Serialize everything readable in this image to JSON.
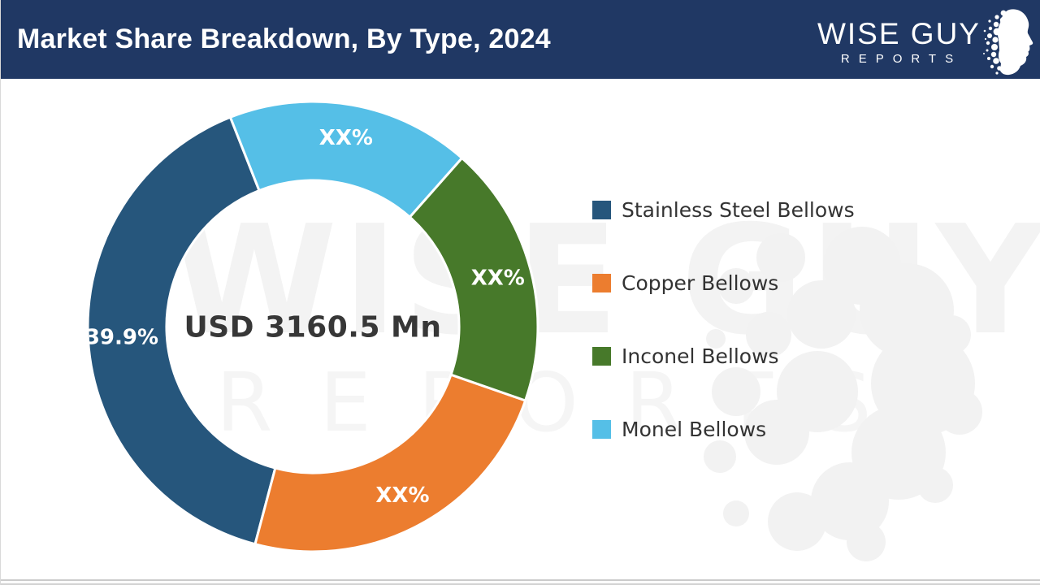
{
  "header": {
    "title": "Market Share Breakdown, By Type, 2024",
    "logo": {
      "brand_line1": "WISE GUY",
      "brand_line2": "REPORTS"
    }
  },
  "chart_data": {
    "type": "pie",
    "subtype": "donut",
    "title": "Market Share Breakdown, By Type, 2024",
    "center_label": "USD 3160.5 Mn",
    "start_angle_deg": 111.5,
    "direction": "counterclockwise",
    "inner_radius_ratio": 0.65,
    "legend_position": "right",
    "grid": false,
    "segments": [
      {
        "label": "Stainless Steel Bellows",
        "display_label": "39.9%",
        "value_pct": 39.9,
        "color": "#26567C"
      },
      {
        "label": "Copper Bellows",
        "display_label": "XX%",
        "value_pct": 23.8,
        "color": "#EC7D2F"
      },
      {
        "label": "Inconel Bellows",
        "display_label": "XX%",
        "value_pct": 18.8,
        "color": "#47792A"
      },
      {
        "label": "Monel Bellows",
        "display_label": "XX%",
        "value_pct": 17.5,
        "color": "#55BFE7"
      }
    ]
  },
  "watermark": {
    "line1": "WISE GUY",
    "line2": "REPORTS"
  },
  "colors": {
    "header_bg": "#203864",
    "chart_bg": "#FFFFFF",
    "center_text": "#373737",
    "legend_text": "#333333",
    "pct_text": "#FFFFFF"
  }
}
